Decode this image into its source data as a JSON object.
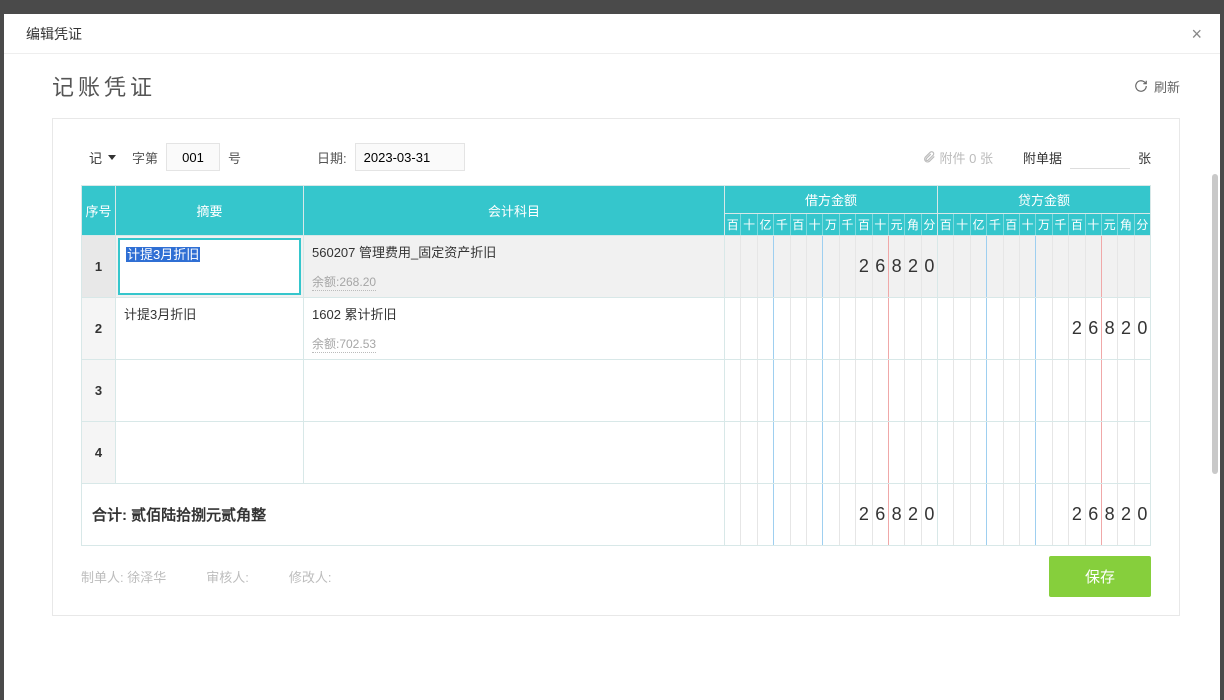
{
  "dialog": {
    "title": "编辑凭证",
    "close_icon": "×"
  },
  "page": {
    "title": "记账凭证",
    "refresh_label": "刷新"
  },
  "form": {
    "prefix_value": "记",
    "prefix_suffix": "字第",
    "number": "001",
    "number_suffix": "号",
    "date_label": "日期:",
    "date_value": "2023-03-31",
    "attach_label": "附件 0 张",
    "bill_label": "附单据",
    "bill_count": "",
    "bill_suffix": "张"
  },
  "table": {
    "headers": {
      "seq": "序号",
      "summary": "摘要",
      "account": "会计科目",
      "debit": "借方金额",
      "credit": "贷方金额",
      "digits": [
        "百",
        "十",
        "亿",
        "千",
        "百",
        "十",
        "万",
        "千",
        "百",
        "十",
        "元",
        "角",
        "分"
      ]
    },
    "digit_border_classes": [
      "",
      "",
      "b-blue",
      "",
      "",
      "b-blue",
      "",
      "",
      "",
      "b-red",
      "",
      "",
      ""
    ],
    "rows": [
      {
        "seq": "1",
        "active": true,
        "editing": true,
        "summary": "计提3月折旧",
        "account": "560207 管理费用_固定资产折旧",
        "balance": "余额:268.20",
        "debit": [
          "",
          "",
          "",
          "",
          "",
          "",
          "",
          "",
          "2",
          "6",
          "8",
          "2",
          "0"
        ],
        "credit": [
          "",
          "",
          "",
          "",
          "",
          "",
          "",
          "",
          "",
          "",
          "",
          "",
          ""
        ]
      },
      {
        "seq": "2",
        "active": false,
        "summary": "计提3月折旧",
        "account": "1602 累计折旧",
        "balance": "余额:702.53",
        "debit": [
          "",
          "",
          "",
          "",
          "",
          "",
          "",
          "",
          "",
          "",
          "",
          "",
          ""
        ],
        "credit": [
          "",
          "",
          "",
          "",
          "",
          "",
          "",
          "",
          "2",
          "6",
          "8",
          "2",
          "0"
        ]
      },
      {
        "seq": "3",
        "active": false,
        "summary": "",
        "account": "",
        "balance": "",
        "debit": [
          "",
          "",
          "",
          "",
          "",
          "",
          "",
          "",
          "",
          "",
          "",
          "",
          ""
        ],
        "credit": [
          "",
          "",
          "",
          "",
          "",
          "",
          "",
          "",
          "",
          "",
          "",
          "",
          ""
        ]
      },
      {
        "seq": "4",
        "active": false,
        "summary": "",
        "account": "",
        "balance": "",
        "debit": [
          "",
          "",
          "",
          "",
          "",
          "",
          "",
          "",
          "",
          "",
          "",
          "",
          ""
        ],
        "credit": [
          "",
          "",
          "",
          "",
          "",
          "",
          "",
          "",
          "",
          "",
          "",
          "",
          ""
        ]
      }
    ],
    "total": {
      "label": "合计:  贰佰陆拾捌元贰角整",
      "debit": [
        "",
        "",
        "",
        "",
        "",
        "",
        "",
        "",
        "2",
        "6",
        "8",
        "2",
        "0"
      ],
      "credit": [
        "",
        "",
        "",
        "",
        "",
        "",
        "",
        "",
        "2",
        "6",
        "8",
        "2",
        "0"
      ]
    }
  },
  "footer": {
    "maker_label": "制单人:",
    "maker_value": "徐泽华",
    "auditor_label": "审核人:",
    "auditor_value": "",
    "modifier_label": "修改人:",
    "modifier_value": "",
    "save_label": "保存"
  },
  "colors": {
    "accent": "#35c6cc",
    "save_btn": "#86cf3c"
  }
}
